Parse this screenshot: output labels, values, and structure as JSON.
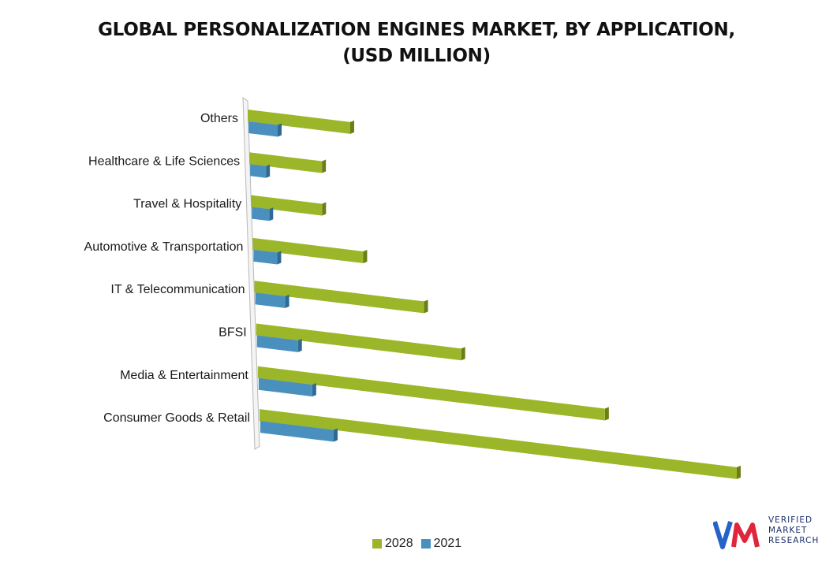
{
  "title_lines": [
    "GLOBAL PERSONALIZATION ENGINES MARKET, BY APPLICATION,",
    "(USD MILLION)"
  ],
  "colors": {
    "2028": "#9cb629",
    "2028_side": "#6b7e17",
    "2021": "#4a90bf",
    "2021_side": "#2e6a93"
  },
  "chart_data": {
    "type": "bar",
    "orientation": "horizontal",
    "title": "GLOBAL PERSONALIZATION ENGINES MARKET, BY APPLICATION, (USD MILLION)",
    "categories": [
      "Others",
      "Healthcare & Life Sciences",
      "Travel & Hospitality",
      "Automotive & Transportation",
      "IT & Telecommunication",
      "BFSI",
      "Media & Entertainment",
      "Consumer Goods & Retail"
    ],
    "series": [
      {
        "name": "2028",
        "values": [
          130,
          92,
          90,
          140,
          215,
          260,
          440,
          605
        ]
      },
      {
        "name": "2021",
        "values": [
          37,
          20,
          22,
          30,
          38,
          52,
          68,
          93
        ]
      }
    ],
    "xlim": [
      0,
      620
    ],
    "grid": false,
    "legend": "bottom"
  },
  "legend": [
    {
      "name": "2028"
    },
    {
      "name": "2021"
    }
  ],
  "logo": {
    "lines": [
      "VERIFIED",
      "MARKET",
      "RESEARCH"
    ],
    "mark": "vmr-logo-icon"
  }
}
